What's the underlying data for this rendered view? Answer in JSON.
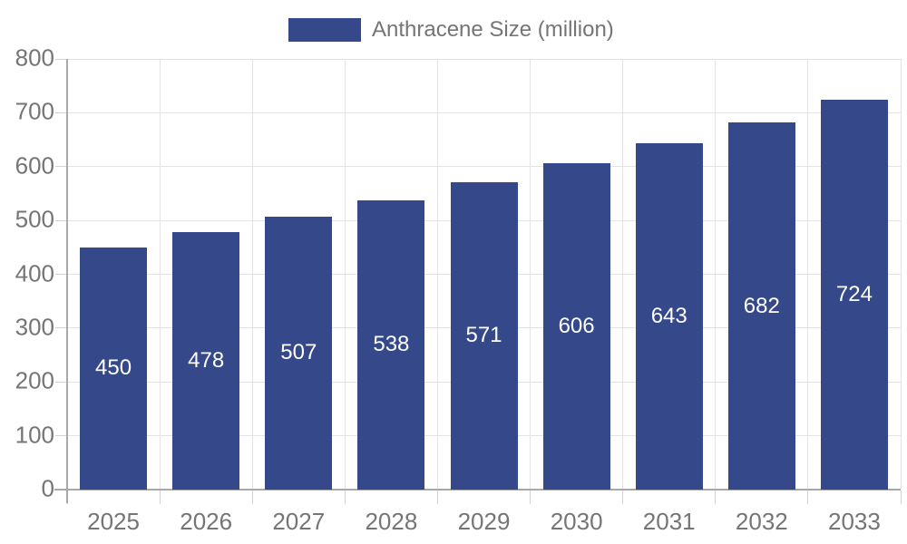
{
  "legend": {
    "label": "Anthracene Size (million)"
  },
  "chart_data": {
    "type": "bar",
    "title": "",
    "xlabel": "",
    "ylabel": "",
    "categories": [
      "2025",
      "2026",
      "2027",
      "2028",
      "2029",
      "2030",
      "2031",
      "2032",
      "2033"
    ],
    "series": [
      {
        "name": "Anthracene Size (million)",
        "values": [
          450,
          478,
          507,
          538,
          571,
          606,
          643,
          682,
          724
        ]
      }
    ],
    "ylim": [
      0,
      800
    ],
    "yticks": [
      0,
      100,
      200,
      300,
      400,
      500,
      600,
      700,
      800
    ],
    "grid": true,
    "legend_position": "top",
    "colors": {
      "bar": "#35498a",
      "value_label": "#ffffff",
      "axis_line": "#a8a8a8",
      "grid_line": "#e3e3e3",
      "tick_mark": "#d2d2d2",
      "tick_text": "#757575"
    }
  }
}
